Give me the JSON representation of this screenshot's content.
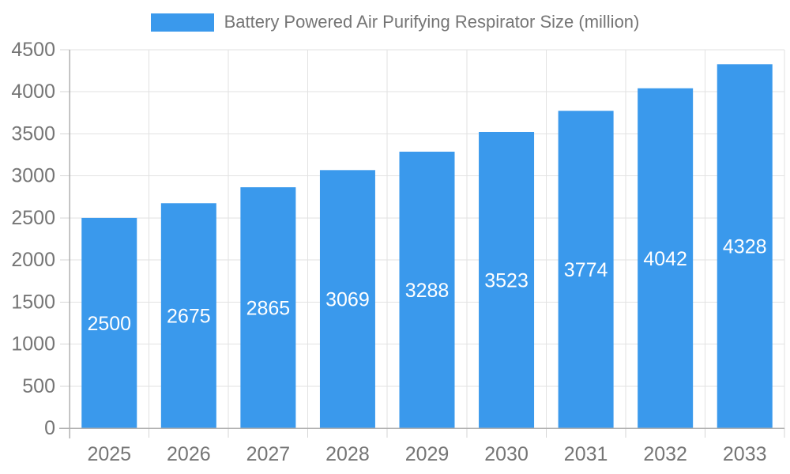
{
  "legend": {
    "label": "Battery Powered Air Purifying Respirator Size (million)"
  },
  "chart_data": {
    "type": "bar",
    "title": "Battery Powered Air Purifying Respirator Size (million)",
    "categories": [
      "2025",
      "2026",
      "2027",
      "2028",
      "2029",
      "2030",
      "2031",
      "2032",
      "2033"
    ],
    "values": [
      2500,
      2675,
      2865,
      3069,
      3288,
      3523,
      3774,
      4042,
      4328
    ],
    "xlabel": "",
    "ylabel": "",
    "ylim": [
      0,
      4500
    ],
    "yticks": [
      0,
      500,
      1000,
      1500,
      2000,
      2500,
      3000,
      3500,
      4000,
      4500
    ],
    "grid": true,
    "legend_position": "top",
    "bar_color": "#3a99ec",
    "bar_label_color": "#ffffff",
    "axis_text_color": "#757575",
    "axis_line_color": "#b0b0b0",
    "grid_color": "#e2e2e2",
    "tick_color": "#d6d6d6"
  }
}
